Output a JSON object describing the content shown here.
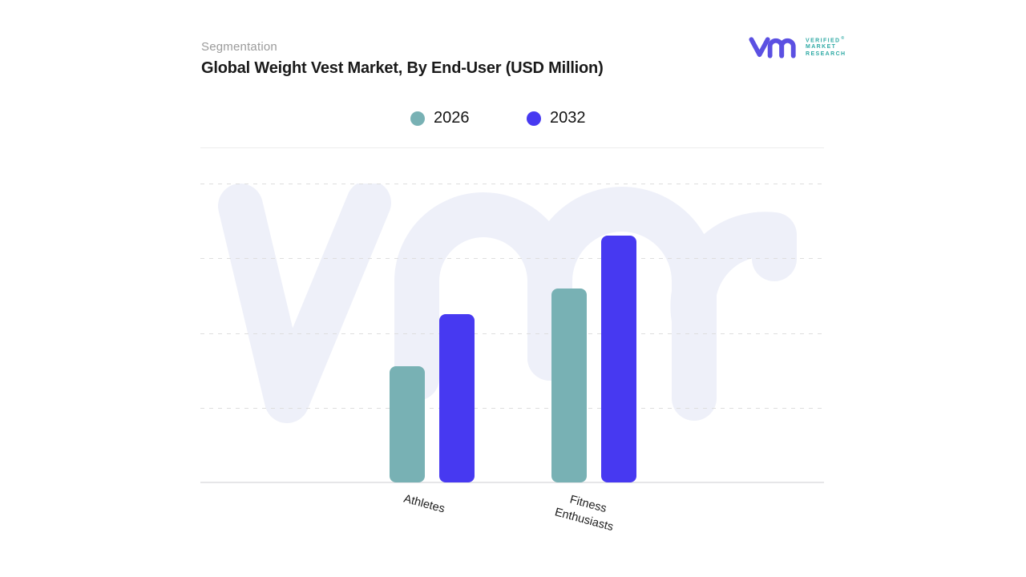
{
  "header": {
    "eyebrow": "Segmentation",
    "title": "Global Weight Vest Market, By End-User (USD Million)"
  },
  "logo": {
    "brand_lines": [
      "VERIFIED",
      "MARKET",
      "RESEARCH"
    ],
    "registered_mark": "®",
    "mark_color": "#5b50e2",
    "text_color": "#2faaa5"
  },
  "legend": [
    {
      "label": "2026",
      "color": "#78b1b4"
    },
    {
      "label": "2032",
      "color": "#4739f1"
    }
  ],
  "chart_data": {
    "type": "bar",
    "title": "Global Weight Vest Market, By End-User (USD Million)",
    "categories": [
      "Athletes",
      "Fitness Enthusiasts"
    ],
    "category_label_lines": [
      [
        "Athletes"
      ],
      [
        "Fitness",
        "Enthusiasts"
      ]
    ],
    "series": [
      {
        "name": "2026",
        "color": "#78b1b4",
        "values": [
          1.55,
          2.6
        ]
      },
      {
        "name": "2032",
        "color": "#4739f1",
        "values": [
          2.25,
          3.3
        ]
      }
    ],
    "xlabel": "",
    "ylabel": "",
    "ylim": [
      0,
      4
    ],
    "grid": "horizontal-dashed",
    "gridline_count": 4,
    "y_axis_labeled": false,
    "legend_position": "top-center",
    "value_note": "y-axis has no numeric tick labels; values estimated in gridline units"
  },
  "watermark": {
    "text": "vmr",
    "color": "#eef0f9"
  },
  "colors": {
    "background": "#ffffff",
    "eyebrow_text": "#9b9b9b",
    "title_text": "#1a1a1a",
    "gridline": "#dedede",
    "baseline": "#e6e6e8"
  }
}
